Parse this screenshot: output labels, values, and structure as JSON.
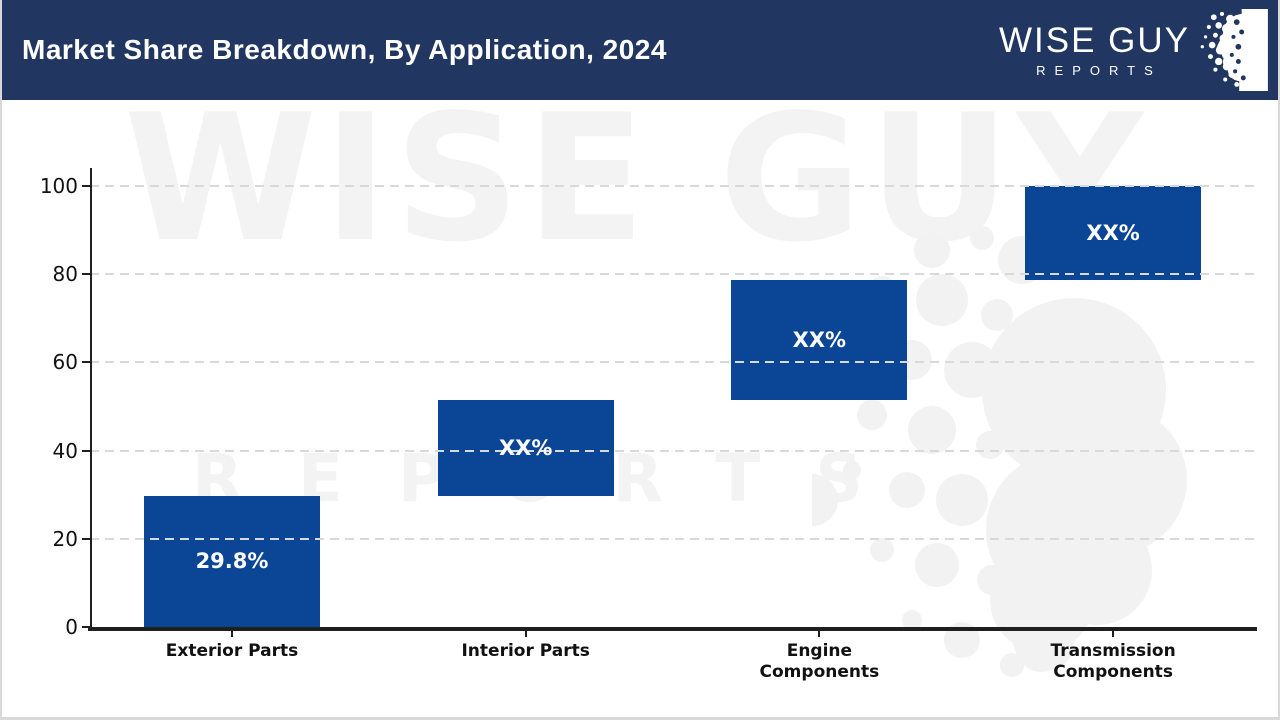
{
  "header": {
    "title": "Market Share Breakdown, By Application, 2024",
    "logo": {
      "wordmark": "WISE GUY",
      "subtitle": "REPORTS"
    }
  },
  "watermark": {
    "line1": "WISE GUY",
    "line2": "REPORTS"
  },
  "chart_data": {
    "type": "bar",
    "variant": "waterfall",
    "title": "Market Share Breakdown, By Application, 2024",
    "categories": [
      "Exterior Parts",
      "Interior Parts",
      "Engine Components",
      "Transmission Components"
    ],
    "bars": [
      {
        "category": "Exterior Parts",
        "start": 0,
        "end": 29.8,
        "label": "29.8%"
      },
      {
        "category": "Interior Parts",
        "start": 29.8,
        "end": 51.5,
        "label": "XX%"
      },
      {
        "category": "Engine Components",
        "start": 51.5,
        "end": 78.7,
        "label": "XX%"
      },
      {
        "category": "Transmission Components",
        "start": 78.7,
        "end": 100,
        "label": "XX%"
      }
    ],
    "xlabel": "",
    "ylabel": "",
    "yticks": [
      0,
      20,
      40,
      60,
      80,
      100
    ],
    "ylim": [
      0,
      104
    ],
    "grid": "horizontal-dashed",
    "legend": "none",
    "bar_color": "#0a4596",
    "value_label_color": "#ffffff"
  },
  "colors": {
    "header_bg": "#213761",
    "bar": "#0a4596",
    "grid": "#d9d9d9",
    "axis": "#1f1f1f",
    "watermark": "#f3f3f3",
    "page_bg": "#ffffff"
  }
}
